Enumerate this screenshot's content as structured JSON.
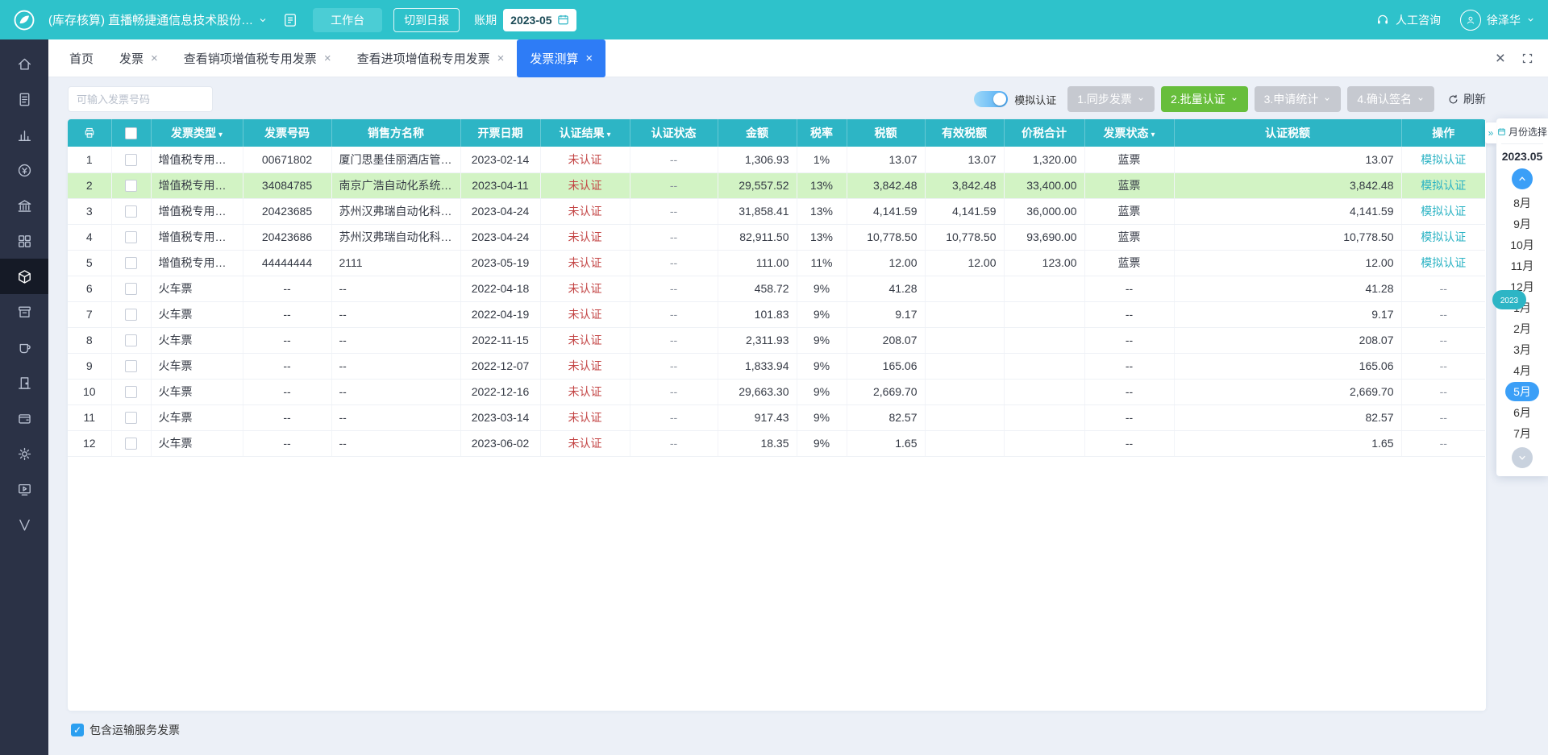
{
  "topbar": {
    "company": "(库存核算) 直播畅捷通信息技术股份…",
    "workbench": "工作台",
    "switch_daily": "切到日报",
    "period_label": "账期",
    "period_value": "2023-05",
    "support": "人工咨询",
    "user": "徐泽华"
  },
  "sidebar": {
    "items": [
      {
        "name": "home",
        "active": false
      },
      {
        "name": "invoice",
        "active": false
      },
      {
        "name": "report",
        "active": false
      },
      {
        "name": "funds",
        "active": false
      },
      {
        "name": "bank",
        "active": false
      },
      {
        "name": "modules",
        "active": false
      },
      {
        "name": "inventory",
        "active": true
      },
      {
        "name": "archive",
        "active": false
      },
      {
        "name": "service",
        "active": false
      },
      {
        "name": "exit",
        "active": false
      },
      {
        "name": "wallet",
        "active": false
      },
      {
        "name": "settings",
        "active": false
      },
      {
        "name": "media",
        "active": false
      },
      {
        "name": "brand",
        "active": false
      }
    ]
  },
  "tabs": [
    {
      "label": "首页",
      "closable": false,
      "active": false
    },
    {
      "label": "发票",
      "closable": true,
      "active": false
    },
    {
      "label": "查看销项增值税专用发票",
      "closable": true,
      "active": false
    },
    {
      "label": "查看进项增值税专用发票",
      "closable": true,
      "active": false
    },
    {
      "label": "发票测算",
      "closable": true,
      "active": true
    }
  ],
  "toolbar": {
    "search_placeholder": "可输入发票号码",
    "toggle_label": "模拟认证",
    "buttons": [
      {
        "label": "1.同步发票",
        "variant": "grey"
      },
      {
        "label": "2.批量认证",
        "variant": "green"
      },
      {
        "label": "3.申请统计",
        "variant": "grey"
      },
      {
        "label": "4.确认签名",
        "variant": "grey"
      }
    ],
    "refresh": "刷新"
  },
  "table": {
    "columns": [
      {
        "key": "type",
        "label": "发票类型",
        "sort": true
      },
      {
        "key": "no",
        "label": "发票号码",
        "sort": false
      },
      {
        "key": "seller",
        "label": "销售方名称",
        "sort": false
      },
      {
        "key": "date",
        "label": "开票日期",
        "sort": false
      },
      {
        "key": "result",
        "label": "认证结果",
        "sort": true
      },
      {
        "key": "status",
        "label": "认证状态",
        "sort": false
      },
      {
        "key": "amount",
        "label": "金额",
        "sort": false
      },
      {
        "key": "rate",
        "label": "税率",
        "sort": false
      },
      {
        "key": "tax",
        "label": "税额",
        "sort": false
      },
      {
        "key": "valid_tax",
        "label": "有效税额",
        "sort": false
      },
      {
        "key": "total",
        "label": "价税合计",
        "sort": false
      },
      {
        "key": "inv_status",
        "label": "发票状态",
        "sort": true
      },
      {
        "key": "cert_tax",
        "label": "认证税额",
        "sort": false
      },
      {
        "key": "action",
        "label": "操作",
        "sort": false
      }
    ],
    "rows": [
      {
        "n": "1",
        "type": "增值税专用发票",
        "no": "00671802",
        "seller": "厦门思墨佳丽酒店管理有限…",
        "date": "2023-02-14",
        "result": "未认证",
        "status": "--",
        "amount": "1,306.93",
        "rate": "1%",
        "tax": "13.07",
        "valid_tax": "13.07",
        "total": "1,320.00",
        "inv_status": "蓝票",
        "cert_tax": "13.07",
        "action": "模拟认证",
        "highlight": false
      },
      {
        "n": "2",
        "type": "增值税专用发票",
        "no": "34084785",
        "seller": "南京广浩自动化系统有限责…",
        "date": "2023-04-11",
        "result": "未认证",
        "status": "--",
        "amount": "29,557.52",
        "rate": "13%",
        "tax": "3,842.48",
        "valid_tax": "3,842.48",
        "total": "33,400.00",
        "inv_status": "蓝票",
        "cert_tax": "3,842.48",
        "action": "模拟认证",
        "highlight": true
      },
      {
        "n": "3",
        "type": "增值税专用发票",
        "no": "20423685",
        "seller": "苏州汉弗瑞自动化科技有限…",
        "date": "2023-04-24",
        "result": "未认证",
        "status": "--",
        "amount": "31,858.41",
        "rate": "13%",
        "tax": "4,141.59",
        "valid_tax": "4,141.59",
        "total": "36,000.00",
        "inv_status": "蓝票",
        "cert_tax": "4,141.59",
        "action": "模拟认证",
        "highlight": false
      },
      {
        "n": "4",
        "type": "增值税专用发票",
        "no": "20423686",
        "seller": "苏州汉弗瑞自动化科技有限…",
        "date": "2023-04-24",
        "result": "未认证",
        "status": "--",
        "amount": "82,911.50",
        "rate": "13%",
        "tax": "10,778.50",
        "valid_tax": "10,778.50",
        "total": "93,690.00",
        "inv_status": "蓝票",
        "cert_tax": "10,778.50",
        "action": "模拟认证",
        "highlight": false
      },
      {
        "n": "5",
        "type": "增值税专用发票",
        "no": "44444444",
        "seller": "2111",
        "date": "2023-05-19",
        "result": "未认证",
        "status": "--",
        "amount": "111.00",
        "rate": "11%",
        "tax": "12.00",
        "valid_tax": "12.00",
        "total": "123.00",
        "inv_status": "蓝票",
        "cert_tax": "12.00",
        "action": "模拟认证",
        "highlight": false
      },
      {
        "n": "6",
        "type": "火车票",
        "no": "--",
        "seller": "--",
        "date": "2022-04-18",
        "result": "未认证",
        "status": "--",
        "amount": "458.72",
        "rate": "9%",
        "tax": "41.28",
        "valid_tax": "",
        "total": "",
        "inv_status": "--",
        "cert_tax": "41.28",
        "action": "--",
        "highlight": false
      },
      {
        "n": "7",
        "type": "火车票",
        "no": "--",
        "seller": "--",
        "date": "2022-04-19",
        "result": "未认证",
        "status": "--",
        "amount": "101.83",
        "rate": "9%",
        "tax": "9.17",
        "valid_tax": "",
        "total": "",
        "inv_status": "--",
        "cert_tax": "9.17",
        "action": "--",
        "highlight": false
      },
      {
        "n": "8",
        "type": "火车票",
        "no": "--",
        "seller": "--",
        "date": "2022-11-15",
        "result": "未认证",
        "status": "--",
        "amount": "2,311.93",
        "rate": "9%",
        "tax": "208.07",
        "valid_tax": "",
        "total": "",
        "inv_status": "--",
        "cert_tax": "208.07",
        "action": "--",
        "highlight": false
      },
      {
        "n": "9",
        "type": "火车票",
        "no": "--",
        "seller": "--",
        "date": "2022-12-07",
        "result": "未认证",
        "status": "--",
        "amount": "1,833.94",
        "rate": "9%",
        "tax": "165.06",
        "valid_tax": "",
        "total": "",
        "inv_status": "--",
        "cert_tax": "165.06",
        "action": "--",
        "highlight": false
      },
      {
        "n": "10",
        "type": "火车票",
        "no": "--",
        "seller": "--",
        "date": "2022-12-16",
        "result": "未认证",
        "status": "--",
        "amount": "29,663.30",
        "rate": "9%",
        "tax": "2,669.70",
        "valid_tax": "",
        "total": "",
        "inv_status": "--",
        "cert_tax": "2,669.70",
        "action": "--",
        "highlight": false
      },
      {
        "n": "11",
        "type": "火车票",
        "no": "--",
        "seller": "--",
        "date": "2023-03-14",
        "result": "未认证",
        "status": "--",
        "amount": "917.43",
        "rate": "9%",
        "tax": "82.57",
        "valid_tax": "",
        "total": "",
        "inv_status": "--",
        "cert_tax": "82.57",
        "action": "--",
        "highlight": false
      },
      {
        "n": "12",
        "type": "火车票",
        "no": "--",
        "seller": "--",
        "date": "2023-06-02",
        "result": "未认证",
        "status": "--",
        "amount": "18.35",
        "rate": "9%",
        "tax": "1.65",
        "valid_tax": "",
        "total": "",
        "inv_status": "--",
        "cert_tax": "1.65",
        "action": "--",
        "highlight": false
      }
    ]
  },
  "month_panel": {
    "title": "月份选择",
    "current": "2023.05",
    "year_badge": "2023",
    "months": [
      "8月",
      "9月",
      "10月",
      "11月",
      "12月",
      "1月",
      "2月",
      "3月",
      "4月",
      "5月",
      "6月",
      "7月"
    ],
    "selected_month": "5月",
    "badge_before": "1月"
  },
  "footer": {
    "include_transport_label": "包含运输服务发票",
    "checked": true
  },
  "colors": {
    "topbar": "#2ec2cb",
    "sidebar": "#2b3246",
    "active_tab": "#2e7cf6",
    "table_header": "#2db5c5",
    "highlight_row": "#d2f3c4",
    "green_button": "#67be3c",
    "grey_button": "#c6c9d0",
    "link": "#2bb3c4",
    "danger_text": "#c34444",
    "selected_month": "#3b9ff7"
  }
}
